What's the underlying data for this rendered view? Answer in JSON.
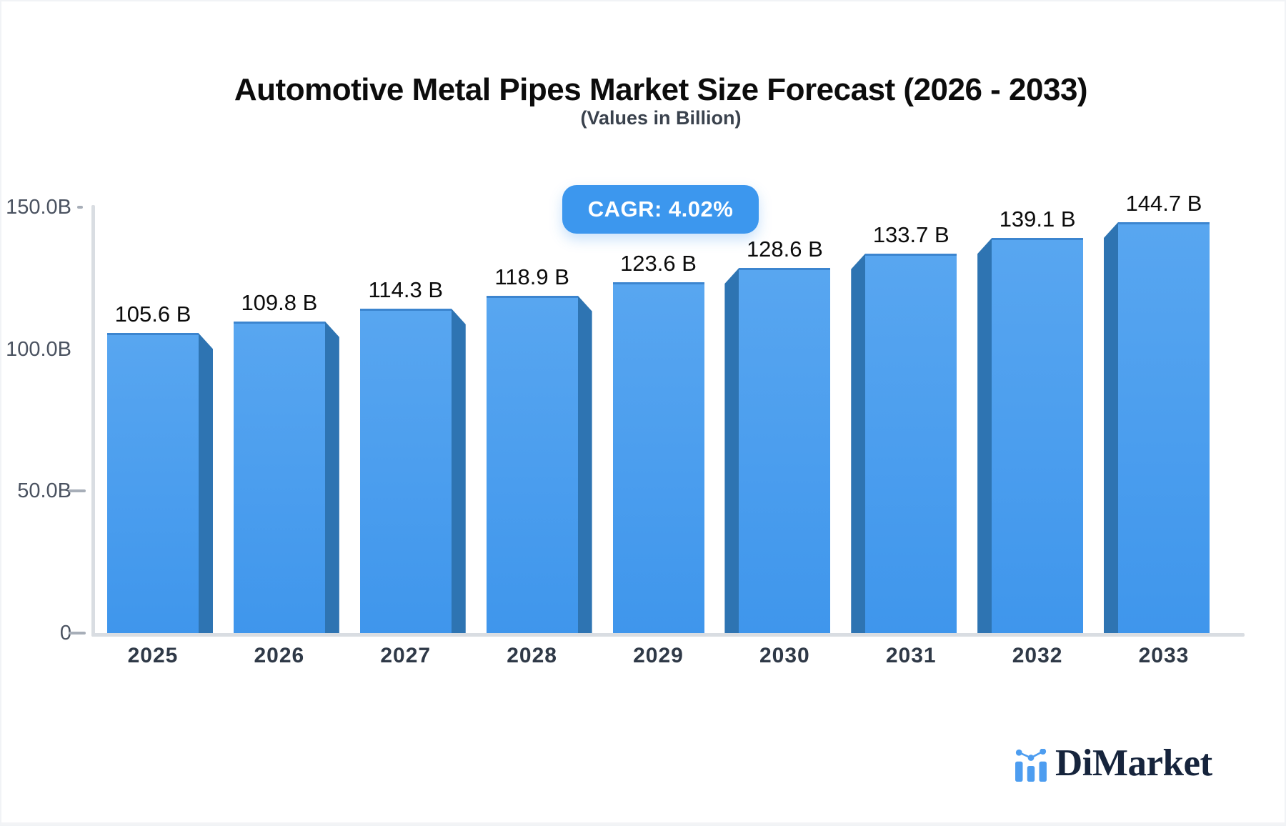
{
  "header": {
    "title": "Automotive Metal Pipes Market Size Forecast (2026 - 2033)",
    "subtitle": "(Values in Billion)",
    "cagr_badge_label": "CAGR: 4.02%",
    "badge_color": "#3c97ee"
  },
  "chart_data": {
    "type": "bar",
    "title": "Automotive Metal Pipes Market Size Forecast (2026 - 2033)",
    "subtitle": "(Values in Billion)",
    "unit": "Billion",
    "cagr": "4.02%",
    "categories": [
      "2025",
      "2026",
      "2027",
      "2028",
      "2029",
      "2030",
      "2031",
      "2032",
      "2033"
    ],
    "values": [
      105.6,
      109.8,
      114.3,
      118.9,
      123.6,
      128.6,
      133.7,
      139.1,
      144.7
    ],
    "bar_labels": [
      "105.6 B",
      "109.8 B",
      "114.3 B",
      "118.9 B",
      "123.6 B",
      "128.6 B",
      "133.7 B",
      "139.1 B",
      "144.7 B"
    ],
    "ylim": [
      0,
      150
    ],
    "yticks": [
      {
        "label": "150.0B",
        "value": 150,
        "dash": "small"
      },
      {
        "label": "100.0B",
        "value": 100,
        "dash": "none"
      },
      {
        "label": "50.0B",
        "value": 50,
        "dash": "full"
      },
      {
        "label": "0",
        "value": 0,
        "dash": "full"
      }
    ],
    "grid": false,
    "legend": false,
    "bar_color_top": "#58a6f0",
    "bar_color_bottom": "#3f96ec",
    "bar_side_color": "#2e74b2",
    "bar_top_edge_color": "#3c85cf",
    "axis_color": "#d9dde2"
  },
  "logo": {
    "text": "DiMarket",
    "text_color": "#16243c",
    "icon_color": "#4d9df0",
    "icon_name": "bar-chart-logo-icon"
  }
}
